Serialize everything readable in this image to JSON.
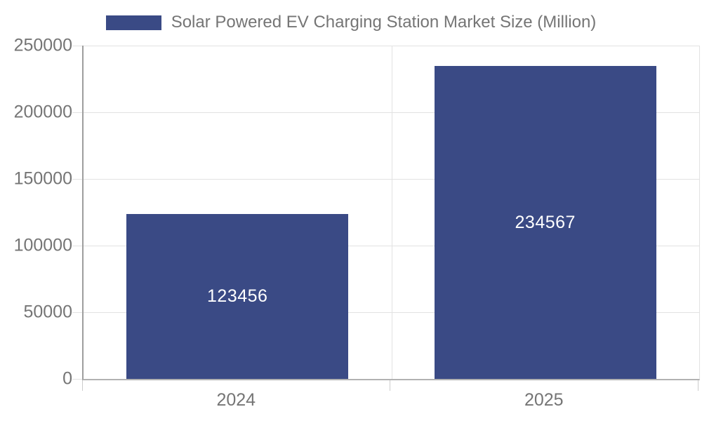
{
  "legend": {
    "label": "Solar Powered EV Charging Station Market Size (Million)"
  },
  "chart_data": {
    "type": "bar",
    "title": "Solar Powered EV Charging Station Market Size (Million)",
    "categories": [
      "2024",
      "2025"
    ],
    "values": [
      123456,
      234567
    ],
    "data_labels": [
      "123456",
      "234567"
    ],
    "xlabel": "",
    "ylabel": "",
    "ylim": [
      0,
      250000
    ],
    "yticks": [
      0,
      50000,
      100000,
      150000,
      200000,
      250000
    ],
    "ytick_labels": [
      "0",
      "50000",
      "100000",
      "150000",
      "200000",
      "250000"
    ],
    "grid": true,
    "legend_position": "top-center",
    "colors": {
      "bar": "#3A4A85",
      "data_label": "#ffffff",
      "axis_text": "#757575",
      "grid_line": "#e2e2e2",
      "axis_line_left": "#9e9e9e",
      "axis_line_bottom": "#b2b2b2",
      "tick": "#cccccc",
      "background": "#ffffff"
    }
  }
}
